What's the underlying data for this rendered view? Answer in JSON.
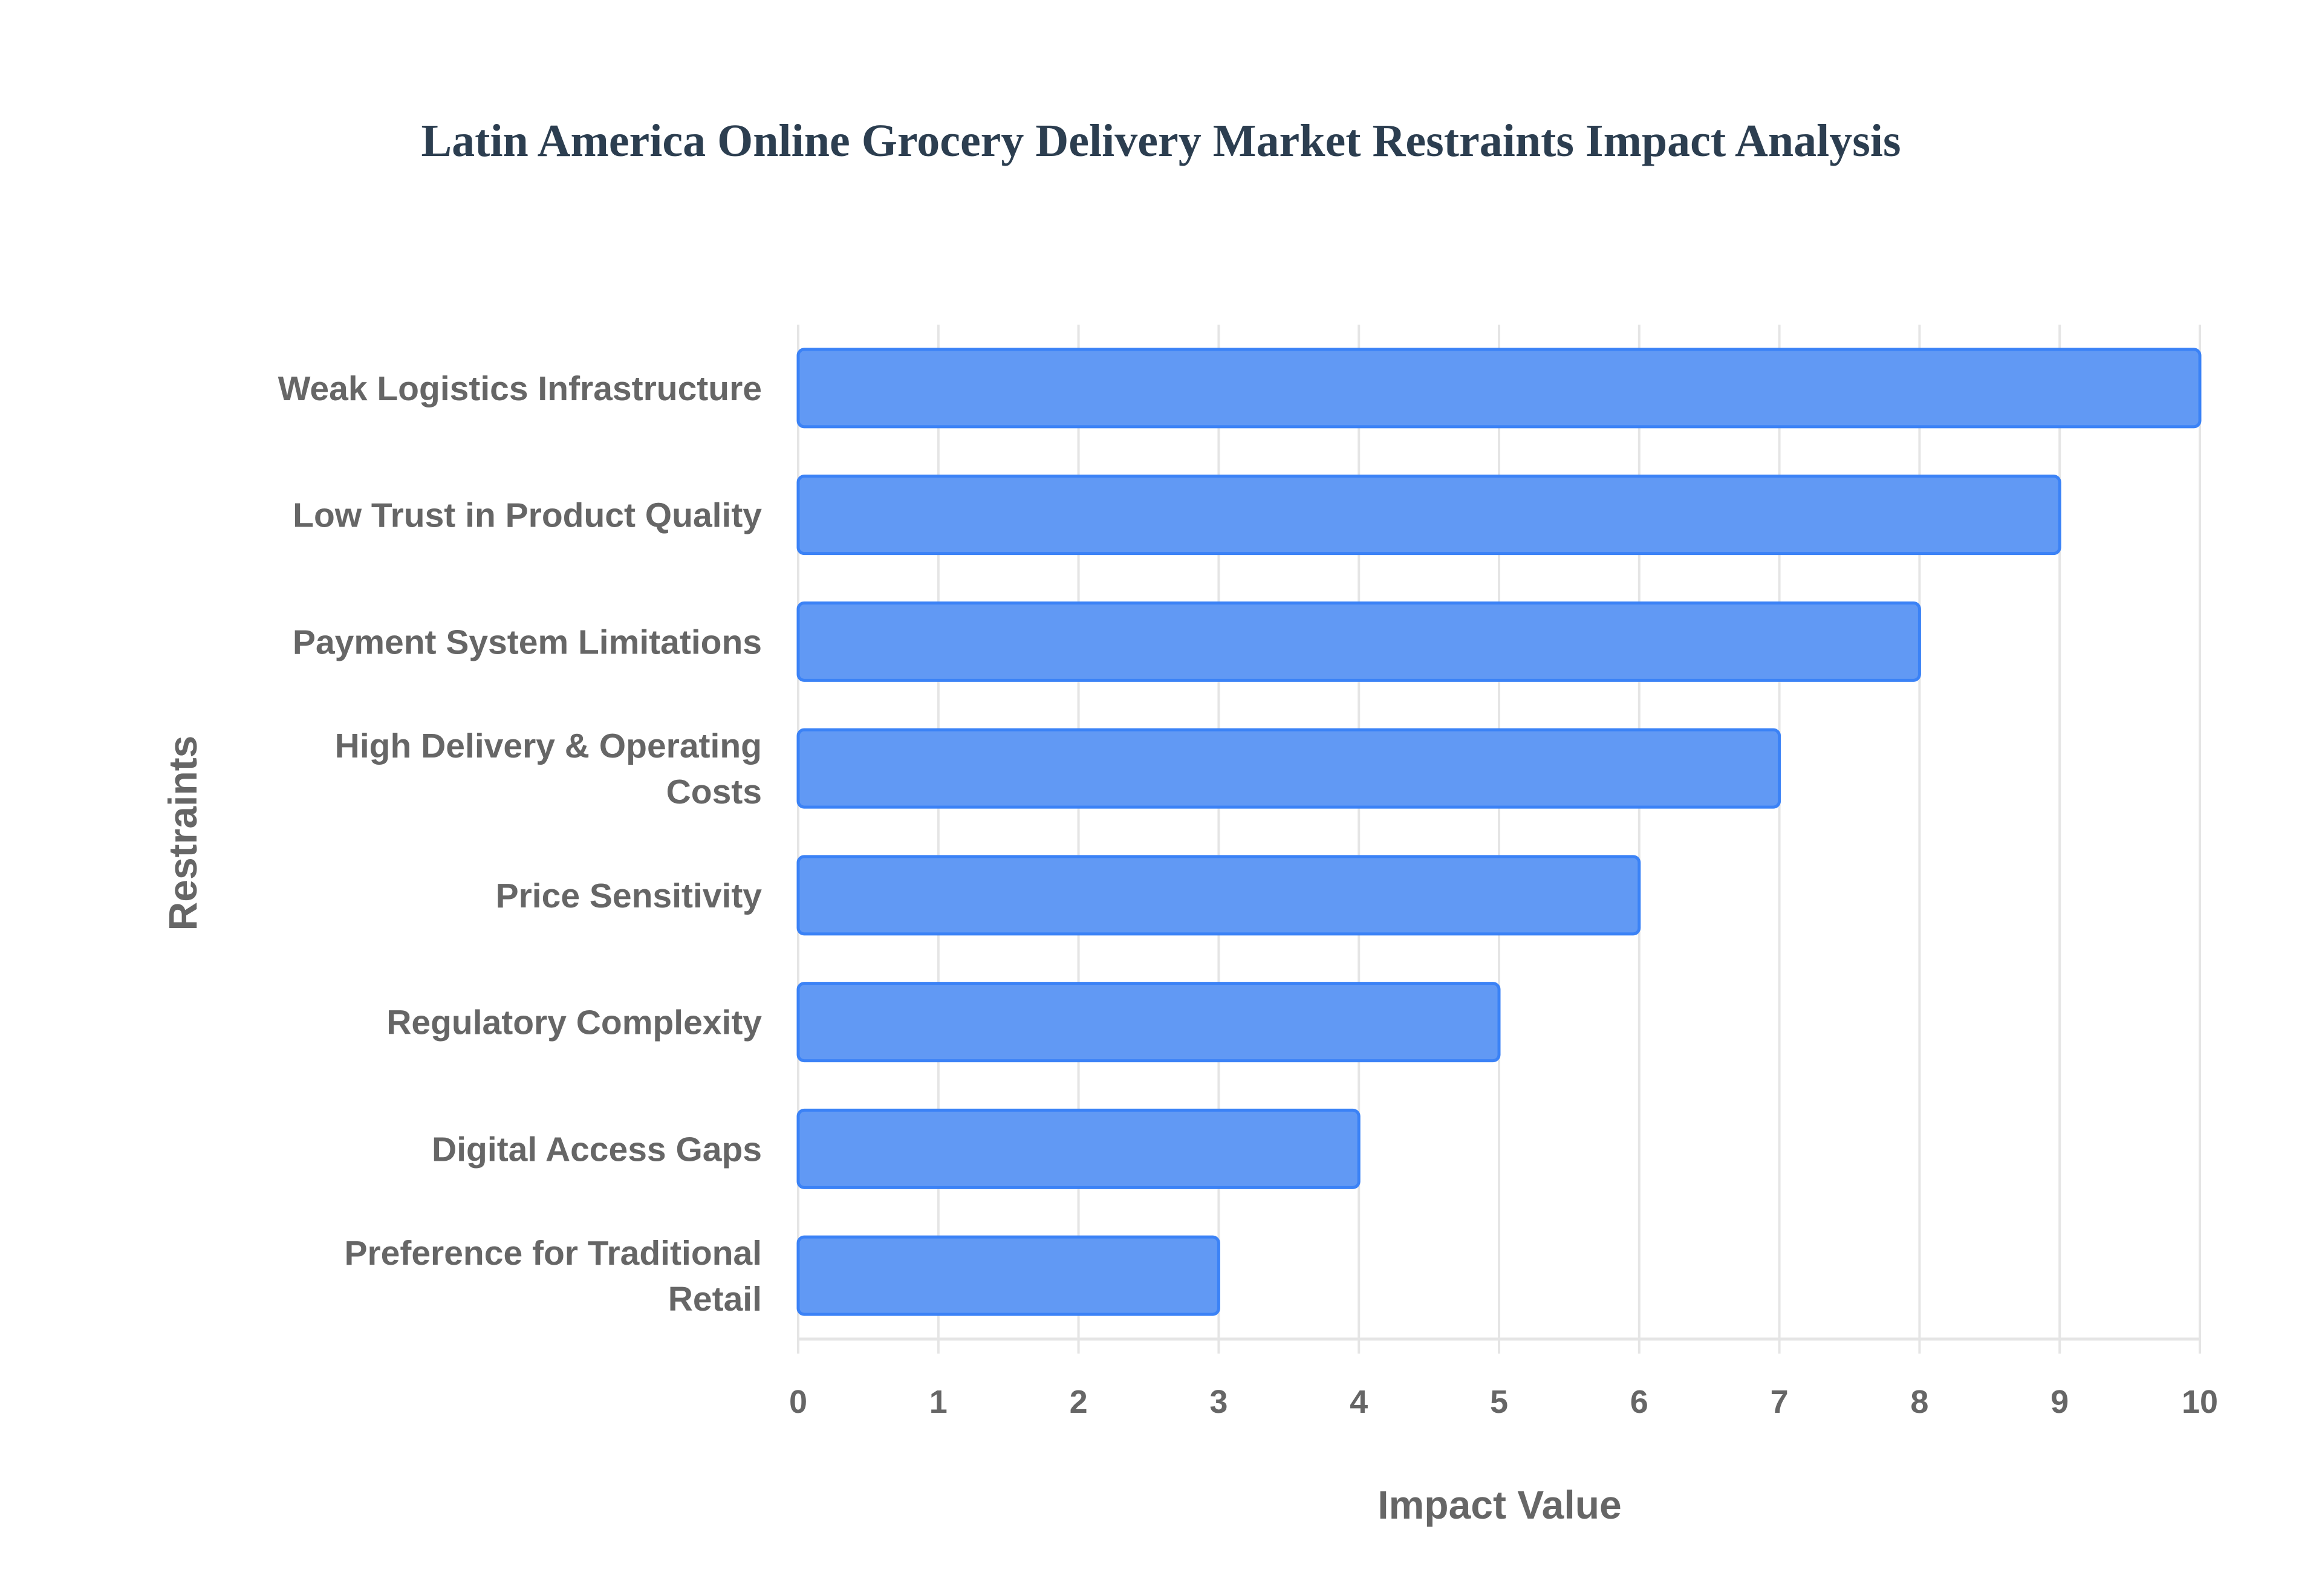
{
  "chart_data": {
    "type": "bar",
    "orientation": "horizontal",
    "title": "Latin America Online Grocery Delivery Market Restraints Impact Analysis",
    "xlabel": "Impact Value",
    "ylabel": "Restraints",
    "categories": [
      "Weak Logistics Infrastructure",
      "Low Trust in Product Quality",
      "Payment System Limitations",
      "High Delivery & Operating Costs",
      "Price Sensitivity",
      "Regulatory Complexity",
      "Digital Access Gaps",
      "Preference for Traditional Retail"
    ],
    "values": [
      10,
      9,
      8,
      7,
      6,
      5,
      4,
      3
    ],
    "xlim": [
      0,
      10
    ],
    "xticks": [
      "0",
      "1",
      "2",
      "3",
      "4",
      "5",
      "6",
      "7",
      "8",
      "9",
      "10"
    ],
    "grid": true,
    "legend": "none",
    "colors": {
      "bar_fill": "#6199f4",
      "bar_border": "#3b82f6",
      "grid": "#e5e5e5",
      "title": "#2c3e50",
      "text": "#666666"
    }
  }
}
